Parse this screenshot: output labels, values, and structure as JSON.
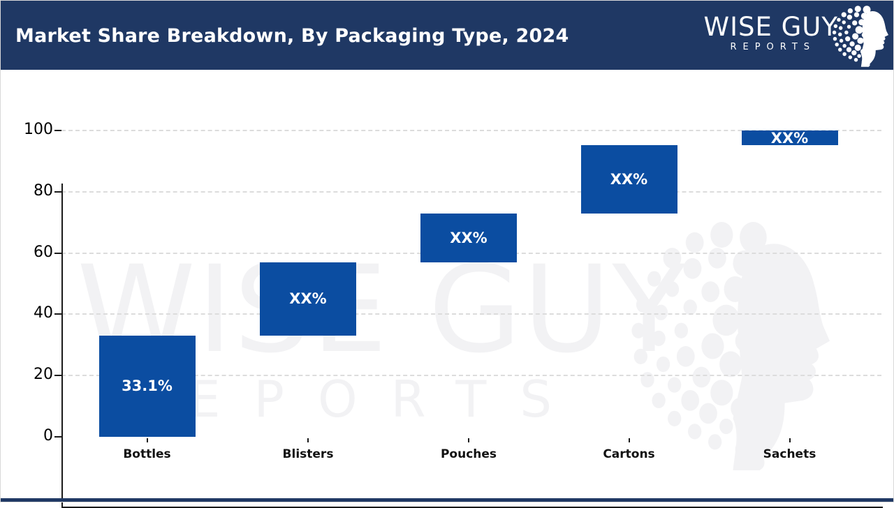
{
  "header": {
    "title": "Market Share Breakdown, By Packaging Type, 2024",
    "logo": {
      "line1": "WISE GUY",
      "line2": "REPORTS"
    }
  },
  "watermark": {
    "line1": "WISE GUY",
    "line2": "REPORTS"
  },
  "colors": {
    "header_bg": "#1f3864",
    "footer_bg": "#1f3864",
    "bar": "#0b4da1",
    "bar_label": "#ffffff",
    "gridline": "#dcdcdc",
    "watermark": "#f2f2f4"
  },
  "chart_data": {
    "type": "bar",
    "subtype": "waterfall",
    "title": "Market Share Breakdown, By Packaging Type, 2024",
    "categories": [
      "Bottles",
      "Blisters",
      "Pouches",
      "Cartons",
      "Sachets"
    ],
    "series": [
      {
        "name": "Market Share",
        "segments": [
          {
            "category": "Bottles",
            "start": 0,
            "end": 33.1,
            "label": "33.1%"
          },
          {
            "category": "Blisters",
            "start": 33.1,
            "end": 56.9,
            "label": "XX%"
          },
          {
            "category": "Pouches",
            "start": 56.9,
            "end": 72.9,
            "label": "XX%"
          },
          {
            "category": "Cartons",
            "start": 72.9,
            "end": 95.2,
            "label": "XX%"
          },
          {
            "category": "Sachets",
            "start": 95.2,
            "end": 100,
            "label": "XX%"
          }
        ]
      }
    ],
    "xlabel": "",
    "ylabel": "",
    "ylim": [
      0,
      100
    ],
    "yticks": [
      0,
      20,
      40,
      60,
      80,
      100
    ],
    "grid": true,
    "legend": false
  }
}
